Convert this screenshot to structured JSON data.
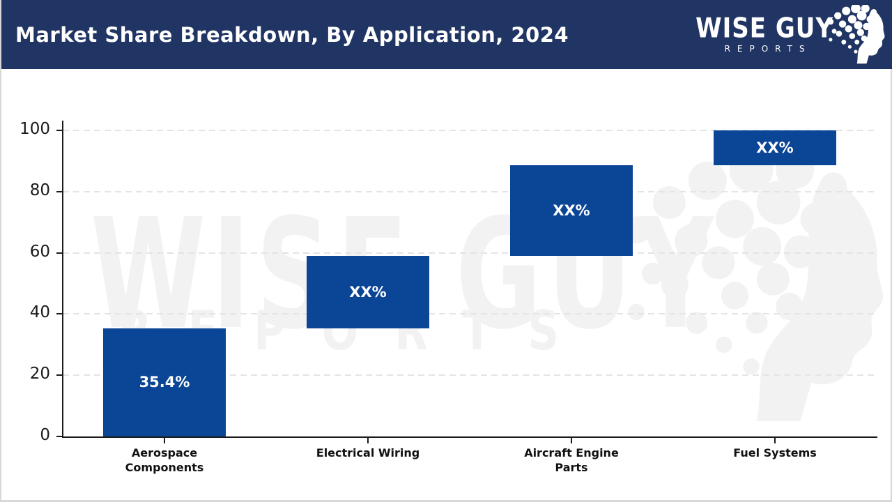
{
  "page": {
    "background": "#ffffff",
    "border_color": "#d8d8d8"
  },
  "header": {
    "bg_color": "#213564",
    "title": "Market Share Breakdown, By Application, 2024",
    "logo": {
      "line1": "WISE GUY",
      "line2": "REPORTS"
    }
  },
  "watermark": {
    "line1": "WISE GUY",
    "line2": "REPORTS"
  },
  "chart_data": {
    "type": "bar",
    "subtype": "floating-waterfall",
    "title": "Market Share Breakdown, By Application, 2024",
    "xlabel": "",
    "ylabel": "",
    "ylim": [
      0,
      100
    ],
    "y_ticks": [
      0,
      20,
      40,
      60,
      80,
      100
    ],
    "grid": "horizontal-dashed",
    "legend": "none",
    "bar_color": "#0b4596",
    "bar_label_color": "#ffffff",
    "axis_color": "#1a1a1a",
    "categories": [
      "Aerospace Components",
      "Electrical Wiring",
      "Aircraft Engine Parts",
      "Fuel Systems"
    ],
    "segments": [
      {
        "category": "Aerospace Components",
        "start": 0,
        "end": 35.4,
        "value": 35.4,
        "label": "35.4%"
      },
      {
        "category": "Electrical Wiring",
        "start": 35.4,
        "end": 59.1,
        "value": 23.7,
        "label": "XX%"
      },
      {
        "category": "Aircraft Engine Parts",
        "start": 59.1,
        "end": 88.6,
        "value": 29.5,
        "label": "XX%"
      },
      {
        "category": "Fuel Systems",
        "start": 88.6,
        "end": 100,
        "value": 11.4,
        "label": "XX%"
      }
    ]
  }
}
